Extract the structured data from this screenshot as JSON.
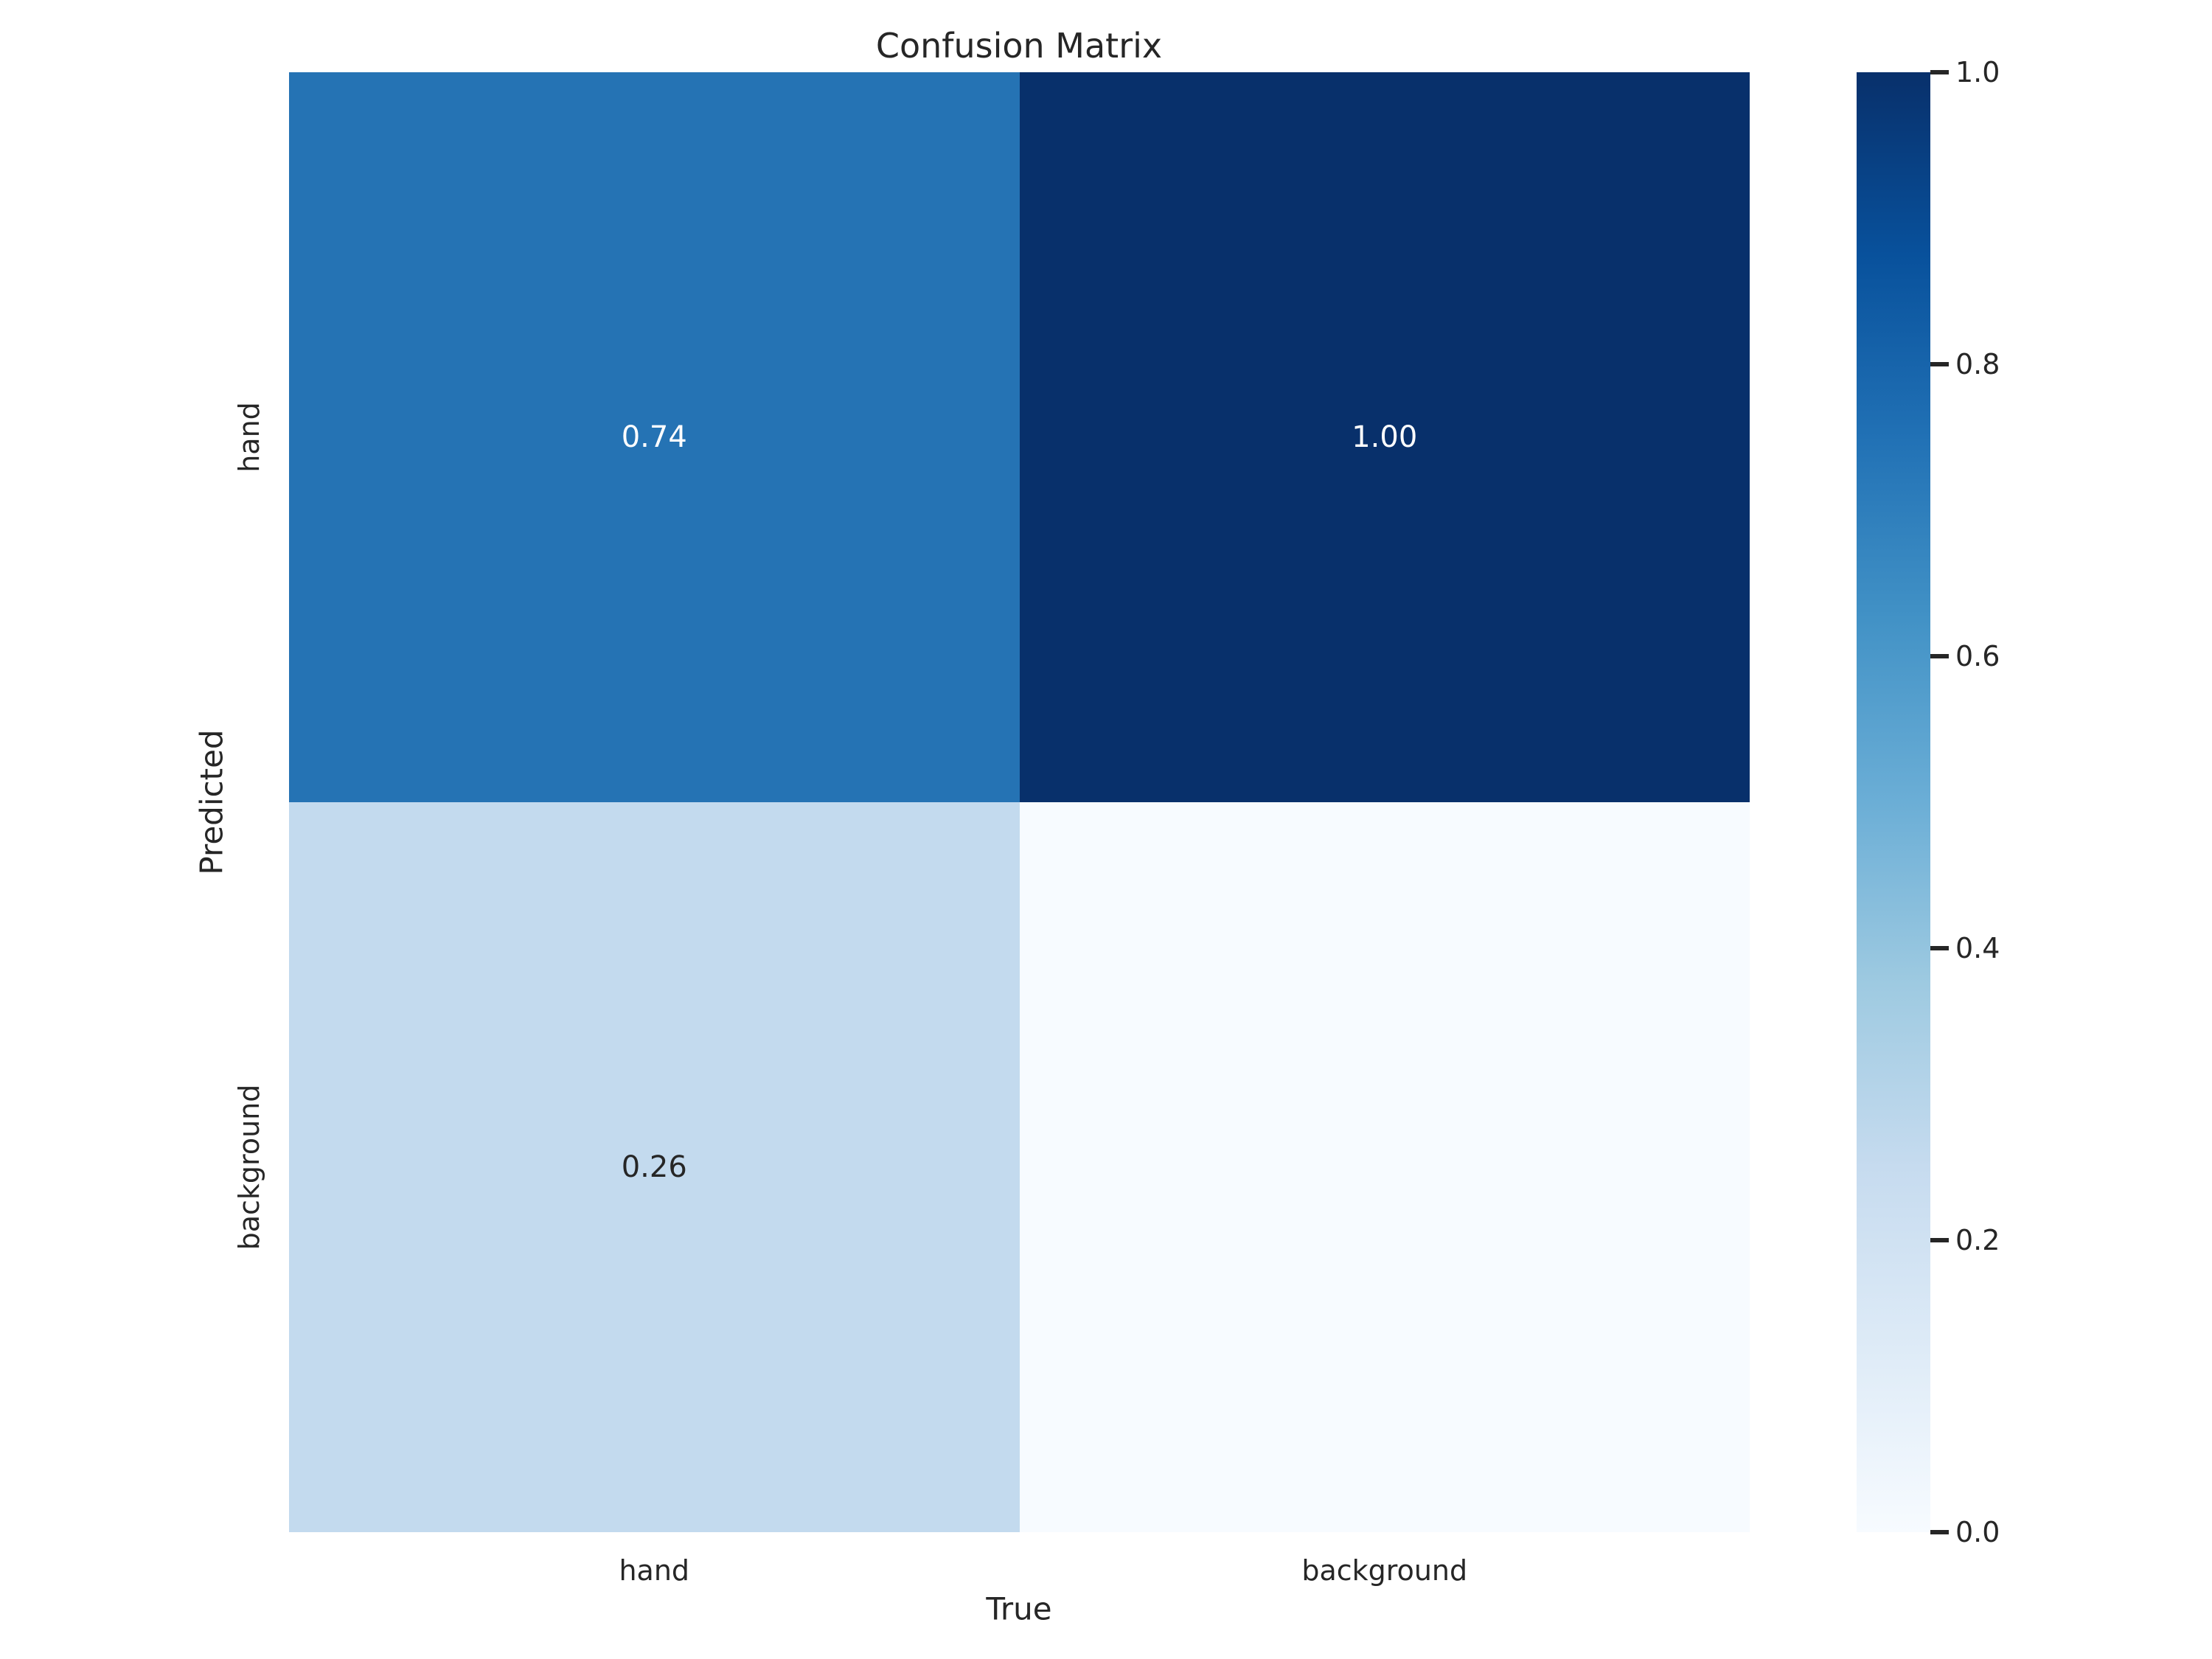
{
  "figure": {
    "background_color": "#ffffff",
    "text_color": "#262626"
  },
  "chart_data": {
    "type": "heatmap",
    "title": "Confusion Matrix",
    "xlabel": "True",
    "ylabel": "Predicted",
    "x_categories": [
      "hand",
      "background"
    ],
    "y_categories": [
      "hand",
      "background"
    ],
    "values": [
      [
        0.74,
        1.0
      ],
      [
        0.26,
        null
      ]
    ],
    "cells": [
      {
        "row": 0,
        "col": 0,
        "value": 0.74,
        "label": "0.74",
        "bg": "#2573b4",
        "fg": "#ffffff"
      },
      {
        "row": 0,
        "col": 1,
        "value": 1.0,
        "label": "1.00",
        "bg": "#08306b",
        "fg": "#ffffff"
      },
      {
        "row": 1,
        "col": 0,
        "value": 0.26,
        "label": "0.26",
        "bg": "#c3daee",
        "fg": "#262626"
      },
      {
        "row": 1,
        "col": 1,
        "value": null,
        "label": "",
        "bg": "#f7fbff",
        "fg": "#262626"
      }
    ],
    "colormap": "Blues",
    "colorbar": {
      "min": 0.0,
      "max": 1.0,
      "ticks": [
        {
          "label": "1.0",
          "value": 1.0
        },
        {
          "label": "0.8",
          "value": 0.8
        },
        {
          "label": "0.6",
          "value": 0.6
        },
        {
          "label": "0.4",
          "value": 0.4
        },
        {
          "label": "0.2",
          "value": 0.2
        },
        {
          "label": "0.0",
          "value": 0.0
        }
      ],
      "gradient_top_to_bottom": [
        "#08306b",
        "#08519c",
        "#2171b5",
        "#4292c6",
        "#6baed6",
        "#9ecae1",
        "#c6dbef",
        "#deebf7",
        "#f7fbff"
      ]
    },
    "grid": false,
    "legend": "colorbar-right"
  }
}
